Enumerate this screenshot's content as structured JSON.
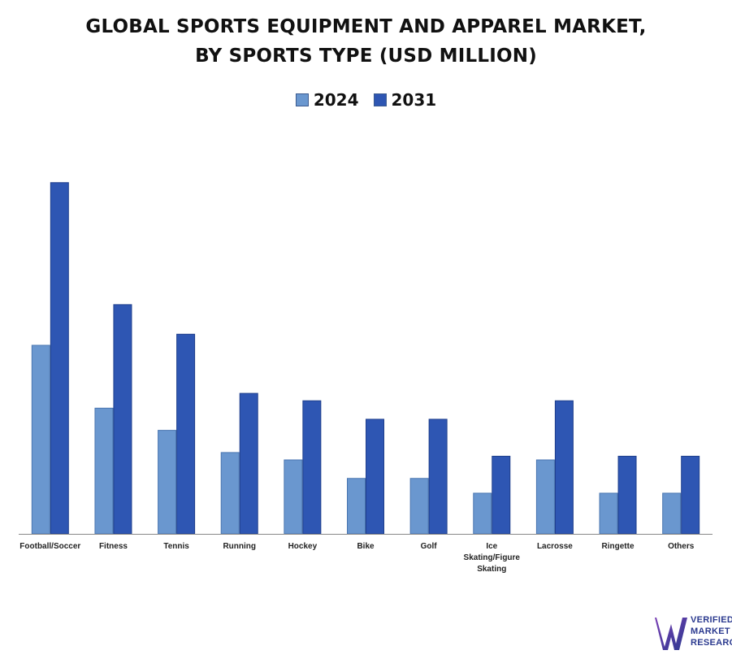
{
  "chart_data": {
    "type": "bar",
    "title_line1": "GLOBAL SPORTS EQUIPMENT AND APPAREL MARKET,",
    "title_line2": "BY SPORTS TYPE (USD MILLION)",
    "xlabel": "",
    "ylabel": "",
    "categories": [
      "Football/Soccer",
      "Fitness",
      "Tennis",
      "Running",
      "Hockey",
      "Bike",
      "Golf",
      "Ice Skating/Figure Skating",
      "Lacrosse",
      "Ringette",
      "Others"
    ],
    "category_lines": [
      [
        "Football/Soccer"
      ],
      [
        "Fitness"
      ],
      [
        "Tennis"
      ],
      [
        "Running"
      ],
      [
        "Hockey"
      ],
      [
        "Bike"
      ],
      [
        "Golf"
      ],
      [
        "Ice",
        "Skating/Figure",
        "Skating"
      ],
      [
        "Lacrosse"
      ],
      [
        "Ringette"
      ],
      [
        "Others"
      ]
    ],
    "series": [
      {
        "name": "2024",
        "color": "#6a97cf",
        "values": [
          51,
          34,
          28,
          22,
          20,
          15,
          15,
          11,
          20,
          11,
          11
        ]
      },
      {
        "name": "2031",
        "color": "#2e56b3",
        "values": [
          95,
          62,
          54,
          38,
          36,
          31,
          31,
          21,
          36,
          21,
          21
        ]
      }
    ],
    "ylim": [
      0,
      100
    ],
    "grid": false,
    "legend": "top-center"
  },
  "logo": {
    "line1": "VERIFIED",
    "line2": "MARKET",
    "line3": "RESEARCH",
    "color": "#2b3a8f"
  }
}
